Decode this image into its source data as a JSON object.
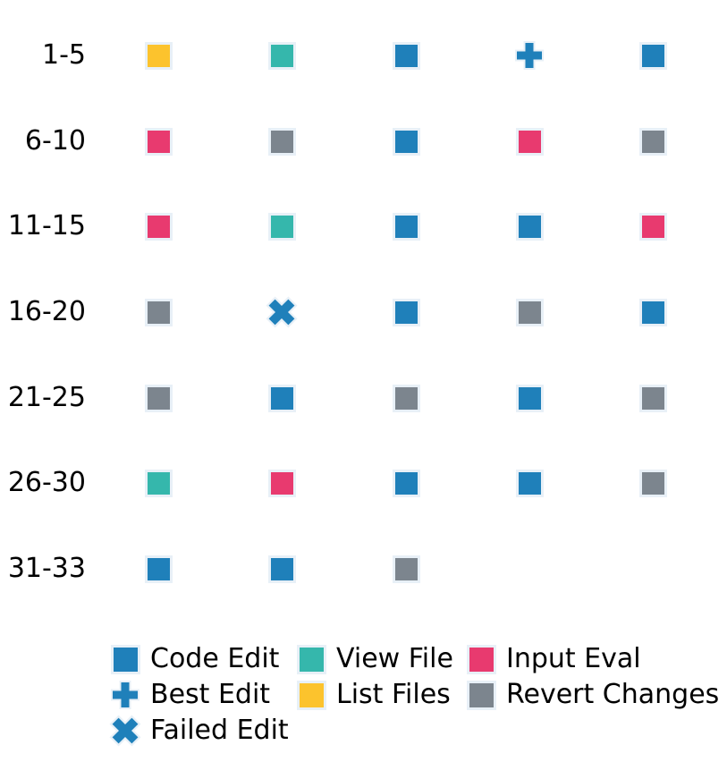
{
  "figure": {
    "background": "#ffffff"
  },
  "chart_data": {
    "type": "scatter",
    "description": "Grid of categorical action markers: each row is a range of sequential steps (5 per row), each column one step within that range.",
    "title": "",
    "xlabel": "",
    "ylabel": "",
    "grid": "off",
    "legend_position": "bottom",
    "rows": [
      {
        "label": "1-5",
        "actions": [
          "List Files",
          "View File",
          "Code Edit",
          "Best Edit",
          "Code Edit"
        ]
      },
      {
        "label": "6-10",
        "actions": [
          "Input Eval",
          "Revert Changes",
          "Code Edit",
          "Input Eval",
          "Revert Changes"
        ]
      },
      {
        "label": "11-15",
        "actions": [
          "Input Eval",
          "View File",
          "Code Edit",
          "Code Edit",
          "Input Eval"
        ]
      },
      {
        "label": "16-20",
        "actions": [
          "Revert Changes",
          "Failed Edit",
          "Code Edit",
          "Revert Changes",
          "Code Edit"
        ]
      },
      {
        "label": "21-25",
        "actions": [
          "Revert Changes",
          "Code Edit",
          "Revert Changes",
          "Code Edit",
          "Revert Changes"
        ]
      },
      {
        "label": "26-30",
        "actions": [
          "View File",
          "Input Eval",
          "Code Edit",
          "Code Edit",
          "Revert Changes"
        ]
      },
      {
        "label": "31-33",
        "actions": [
          "Code Edit",
          "Code Edit",
          "Revert Changes"
        ]
      }
    ],
    "action_styles": {
      "Code Edit": {
        "marker": "square",
        "color": "#1F80BA"
      },
      "View File": {
        "marker": "square",
        "color": "#35B7AC"
      },
      "Input Eval": {
        "marker": "square",
        "color": "#E83A6F"
      },
      "Best Edit": {
        "marker": "plus",
        "color": "#1F80BA"
      },
      "List Files": {
        "marker": "square",
        "color": "#FCC32D"
      },
      "Revert Changes": {
        "marker": "square",
        "color": "#7C858E"
      },
      "Failed Edit": {
        "marker": "x",
        "color": "#1F80BA"
      }
    },
    "legend": {
      "columns": [
        {
          "items": [
            "Code Edit",
            "Best Edit",
            "Failed Edit"
          ]
        },
        {
          "items": [
            "View File",
            "List Files"
          ]
        },
        {
          "items": [
            "Input Eval",
            "Revert Changes"
          ]
        }
      ]
    },
    "marker_edge_color": "#E8F0F7",
    "text_color": "#000000"
  }
}
